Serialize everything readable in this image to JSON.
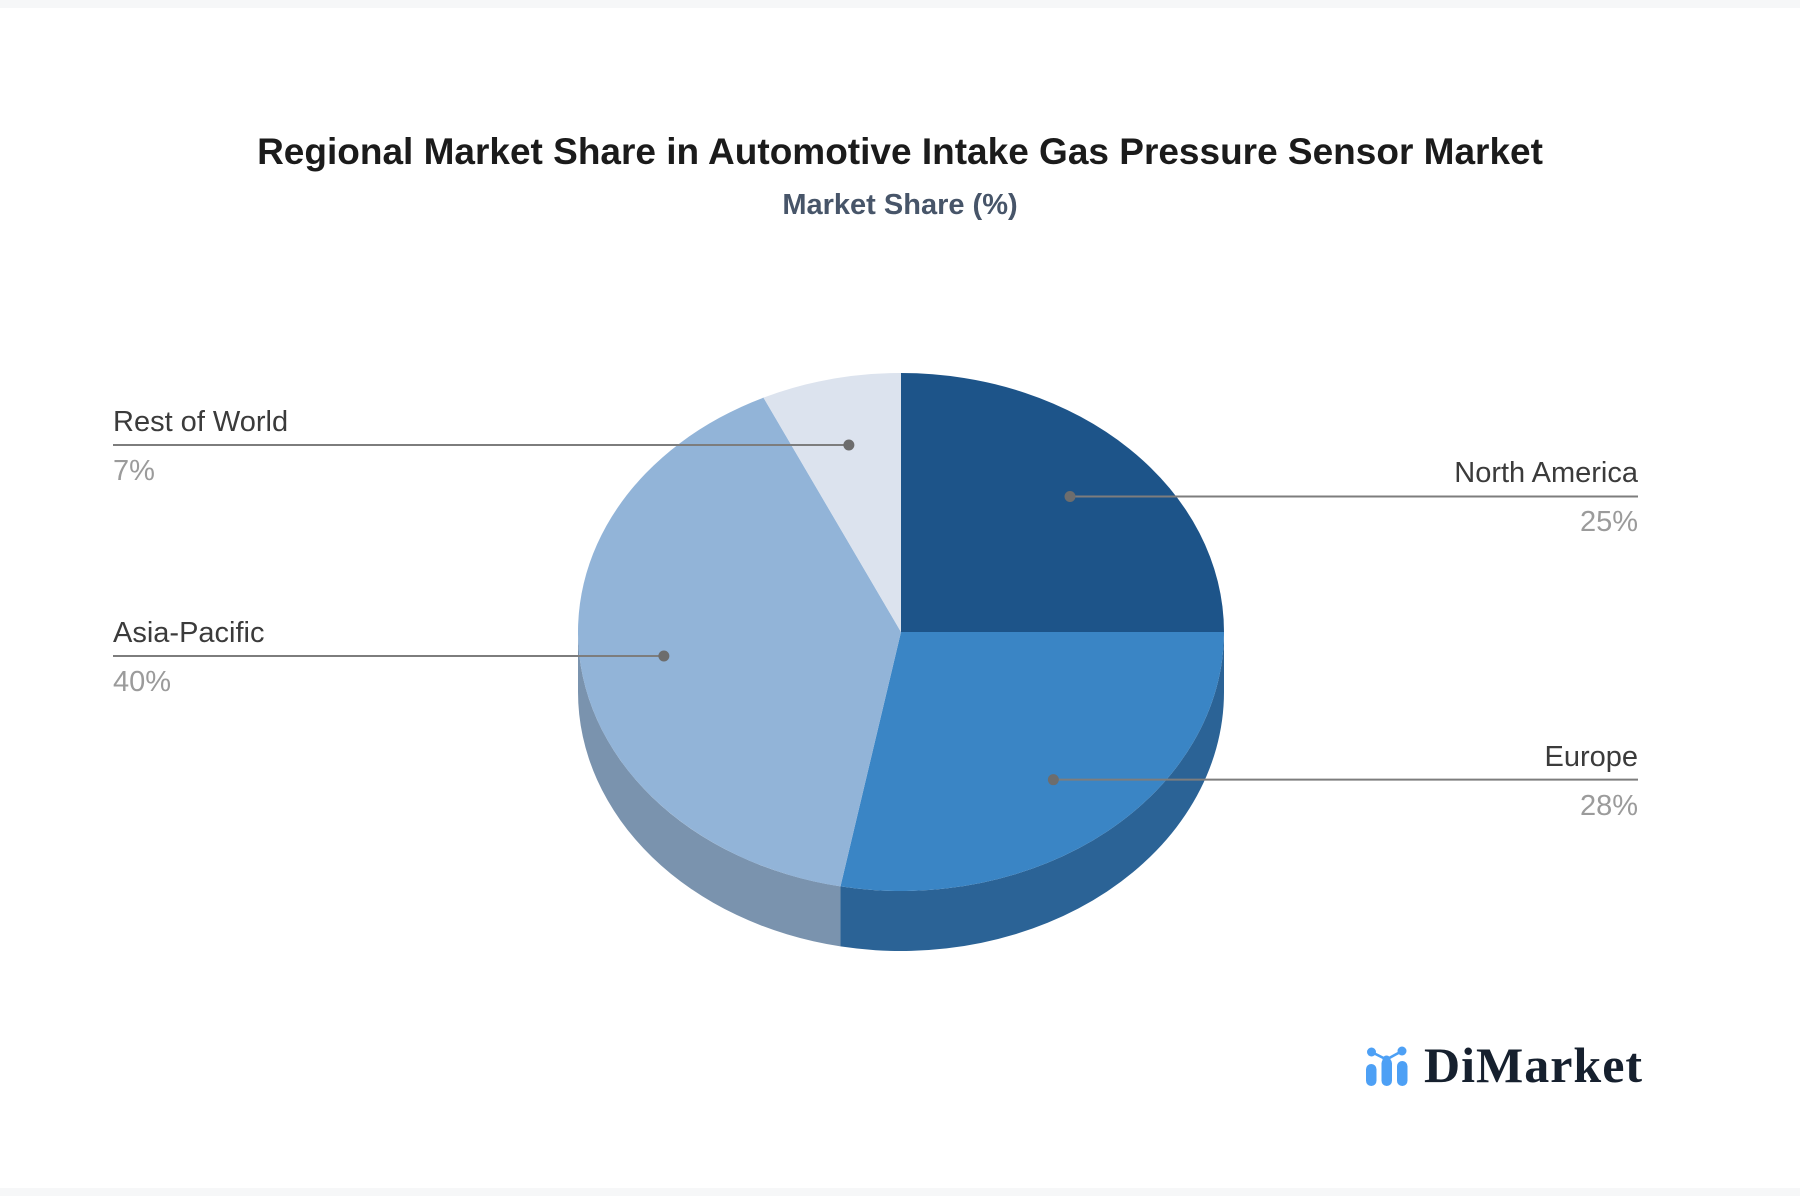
{
  "page": {
    "title": "Regional Market Share in Automotive Intake Gas Pressure Sensor Market",
    "subtitle": "Market Share (%)"
  },
  "brand": {
    "name": "DiMarket",
    "icon": "bar-line-chart-icon",
    "icon_color": "#4DA0F5",
    "text_color": "#16202E"
  },
  "colors": {
    "background": "#FFFFFF",
    "edge_strip": "#F6F7F8",
    "title_text": "#1B1B1B",
    "subtitle_text": "#475569",
    "label_text": "#3B3B3B",
    "pct_text": "#9B9B9B",
    "leader_line": "#7D7D7D",
    "leader_dot": "#6D6D6D"
  },
  "chart_data": {
    "type": "pie",
    "title": "Regional Market Share in Automotive Intake Gas Pressure Sensor Market",
    "subtitle": "Market Share (%)",
    "unit": "%",
    "effect": "3d-depth",
    "start_angle_deg": 0,
    "clockwise": true,
    "legend_position": "outside-leader-lines",
    "categories": [
      "North America",
      "Europe",
      "Asia-Pacific",
      "Rest of World"
    ],
    "values": [
      25,
      28,
      40,
      7
    ],
    "slices": [
      {
        "label": "North America",
        "value": 25,
        "display": "25%",
        "color": "#1D5489",
        "side_color": "#16456F"
      },
      {
        "label": "Europe",
        "value": 28,
        "display": "28%",
        "color": "#3A85C5",
        "side_color": "#2B6396"
      },
      {
        "label": "Asia-Pacific",
        "value": 40,
        "display": "40%",
        "color": "#92B4D8",
        "side_color": "#7A93AE"
      },
      {
        "label": "Rest of World",
        "value": 7,
        "display": "7%",
        "color": "#DCE3EE",
        "side_color": "#C6D0DF"
      }
    ]
  }
}
